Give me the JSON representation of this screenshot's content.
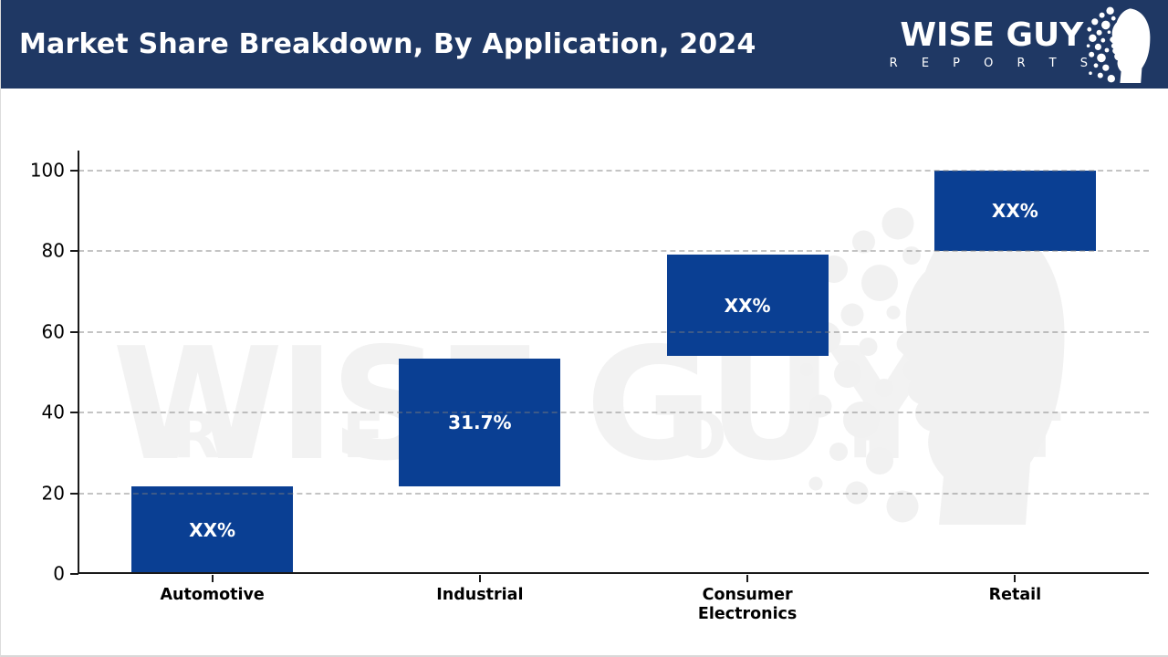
{
  "header": {
    "title": "Market Share Breakdown, By Application, 2024",
    "bg_color": "#1f3864",
    "logo": {
      "name": "WISE GUY",
      "sub": "R E P O R T S"
    }
  },
  "watermark": {
    "line1": "WISE GUY",
    "line2": "R E P O R T S",
    "color": "#f2f2f2"
  },
  "chart_data": {
    "type": "bar",
    "subtype": "waterfall",
    "title": "Market Share Breakdown, By Application, 2024",
    "categories": [
      "Automotive",
      "Industrial",
      "Consumer Electronics",
      "Retail"
    ],
    "segments": [
      {
        "category": "Automotive",
        "start": 0,
        "end": 21.7,
        "label": "XX%"
      },
      {
        "category": "Industrial",
        "start": 21.7,
        "end": 53.4,
        "label": "31.7%"
      },
      {
        "category": "Consumer Electronics",
        "start": 53.9,
        "end": 79.2,
        "label": "XX%"
      },
      {
        "category": "Retail",
        "start": 79.9,
        "end": 100,
        "label": "XX%"
      }
    ],
    "xlabel": "",
    "ylabel": "",
    "ylim": [
      0,
      100
    ],
    "yticks": [
      0,
      20,
      40,
      60,
      80,
      100
    ],
    "grid": "horizontal-dashed",
    "legend": "none",
    "bar_color": "#0a3f93",
    "bar_label_color": "#ffffff",
    "axis_color": "#1a1a1a",
    "gridline_color": "rgba(125,125,125,0.45)"
  }
}
